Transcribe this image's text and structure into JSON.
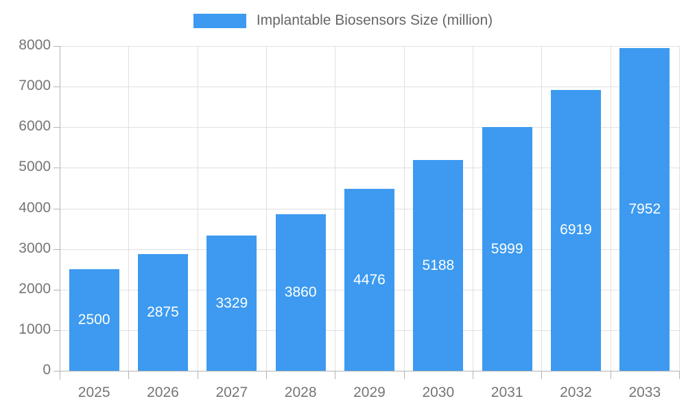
{
  "chart_data": {
    "type": "bar",
    "legend_label": "Implantable Biosensors Size (million)",
    "categories": [
      "2025",
      "2026",
      "2027",
      "2028",
      "2029",
      "2030",
      "2031",
      "2032",
      "2033"
    ],
    "values": [
      2500,
      2875,
      3329,
      3860,
      4476,
      5188,
      5999,
      6919,
      7952
    ],
    "value_labels": [
      "2500",
      "2875",
      "3329",
      "3860",
      "4476",
      "5188",
      "5999",
      "6919",
      "7952"
    ],
    "ylim": [
      0,
      8000
    ],
    "ytick_step": 1000,
    "ytick_labels": [
      "0",
      "1000",
      "2000",
      "3000",
      "4000",
      "5000",
      "6000",
      "7000",
      "8000"
    ],
    "grid": "on",
    "legend_position": "top-center",
    "colors": {
      "bar": "#3d9af0",
      "gridline": "#e0e0e0",
      "axis": "#b3b3b3",
      "tick_text": "#757575",
      "legend_text": "#666666",
      "value_text": "#ffffff"
    }
  }
}
